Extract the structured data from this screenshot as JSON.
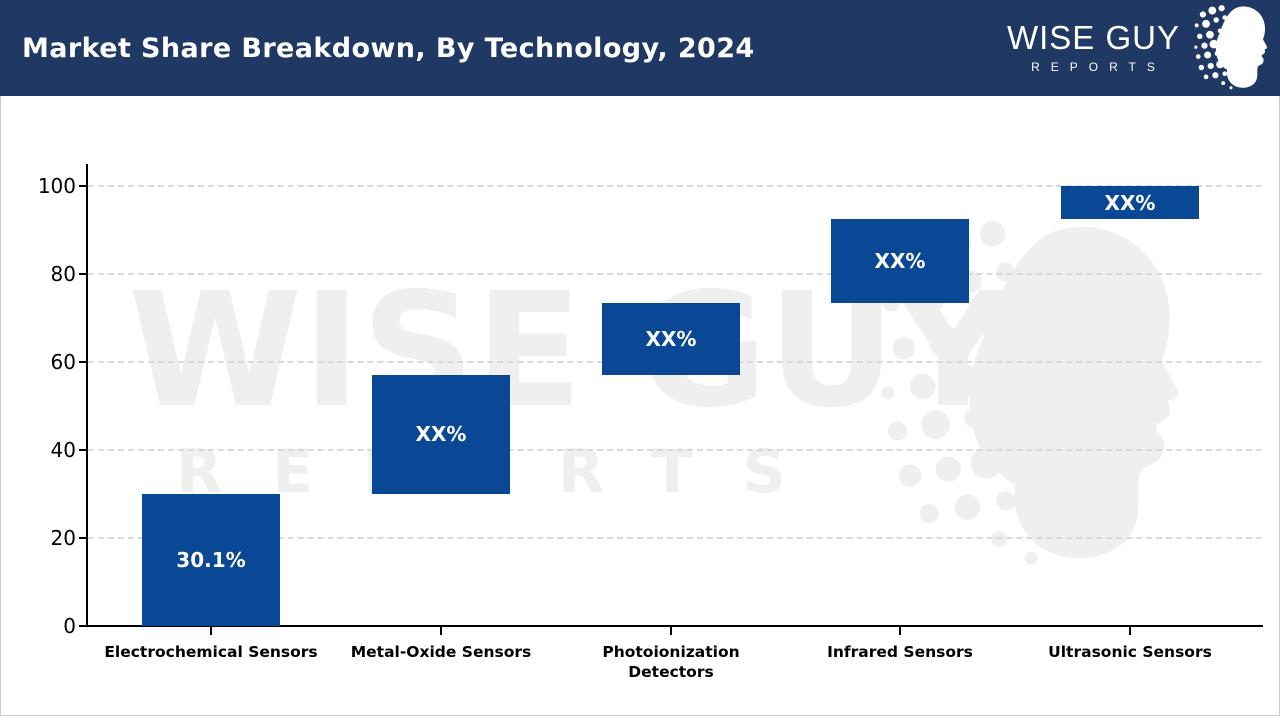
{
  "header": {
    "title": "Market Share Breakdown, By Technology, 2024",
    "logo": {
      "name": "WISE GUY",
      "subtitle": "REPORTS",
      "face_icon": "dotted-head-profile"
    }
  },
  "watermark": {
    "line1": "WISE GUY",
    "line2": "REPORTS"
  },
  "theme": {
    "header_bg": "#1f3864",
    "bar_blue": "#0a4795",
    "grid_line": "#d9d9d9",
    "watermark": "#efefef",
    "axis": "#000000"
  },
  "chart_data": {
    "type": "bar",
    "subtype": "floating-waterfall",
    "title": "Market Share Breakdown, By Technology, 2024",
    "categories": [
      "Electrochemical Sensors",
      "Metal-Oxide Sensors",
      "Photoionization Detectors",
      "Infrared Sensors",
      "Ultrasonic Sensors"
    ],
    "series": [
      {
        "name": "Market share (%)",
        "segments": [
          {
            "start": 0,
            "end": 30.1,
            "label": "30.1%"
          },
          {
            "start": 30.1,
            "end": 57,
            "label": "XX%"
          },
          {
            "start": 57,
            "end": 73.5,
            "label": "XX%"
          },
          {
            "start": 73.5,
            "end": 92.5,
            "label": "XX%"
          },
          {
            "start": 92.5,
            "end": 100,
            "label": "XX%"
          }
        ]
      }
    ],
    "xlabel": "",
    "ylabel": "",
    "ylim": [
      0,
      100
    ],
    "yticks": [
      0,
      20,
      40,
      60,
      80,
      100
    ],
    "grid": {
      "horizontal": true,
      "style": "dashed"
    },
    "legend": "none",
    "bar_color": "#0a4795",
    "bar_label_color": "#ffffff"
  }
}
